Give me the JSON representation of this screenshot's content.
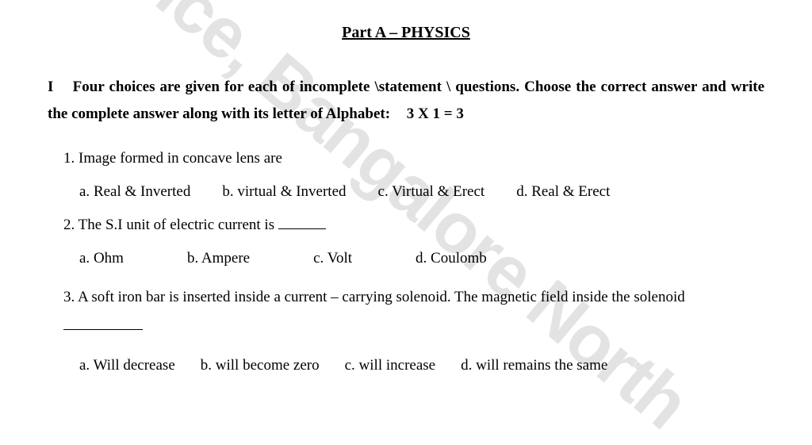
{
  "watermark": "ice, Bangalore North",
  "part_title": "Part A – PHYSICS",
  "instructions": {
    "lead": "I",
    "text_bold": "Four choices are given for each of incomplete \\statement \\ questions. Choose the correct answer and write the complete answer along with its letter of Alphabet:",
    "marks": "3 X 1 = 3"
  },
  "questions": [
    {
      "number": "1.",
      "text": "Image formed in concave lens are",
      "has_blank": false,
      "options": [
        {
          "letter": "a.",
          "text": "Real & Inverted"
        },
        {
          "letter": "b.",
          "text": "virtual & Inverted"
        },
        {
          "letter": "c.",
          "text": "Virtual & Erect"
        },
        {
          "letter": "d.",
          "text": "Real & Erect"
        }
      ]
    },
    {
      "number": "2.",
      "text": "The S.I unit of electric current is",
      "has_blank": true,
      "options": [
        {
          "letter": "a.",
          "text": "Ohm"
        },
        {
          "letter": "b.",
          "text": "Ampere"
        },
        {
          "letter": "c.",
          "text": "Volt"
        },
        {
          "letter": "d.",
          "text": "Coulomb"
        }
      ]
    },
    {
      "number": "3.",
      "text": "A soft iron bar is inserted inside a current – carrying solenoid. The magnetic field inside the solenoid",
      "has_blank": true,
      "long_blank": true,
      "options": [
        {
          "letter": "a.",
          "text": "Will decrease"
        },
        {
          "letter": "b.",
          "text": "will become zero"
        },
        {
          "letter": "c.",
          "text": "will increase"
        },
        {
          "letter": "d.",
          "text": "will remains the same"
        }
      ]
    }
  ]
}
